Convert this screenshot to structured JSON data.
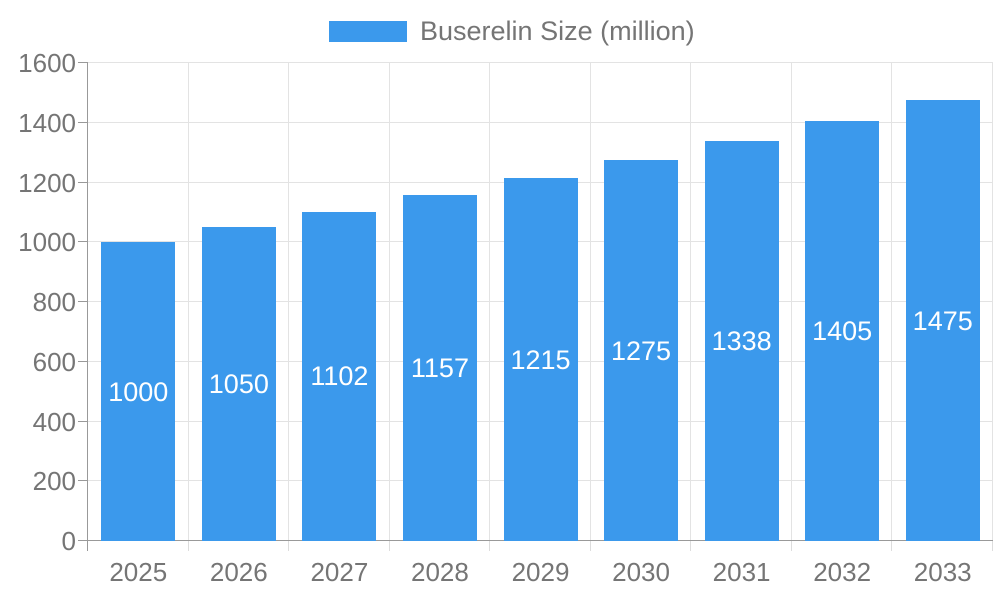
{
  "chart_data": {
    "type": "bar",
    "title": "Buserelin Size (million)",
    "categories": [
      "2025",
      "2026",
      "2027",
      "2028",
      "2029",
      "2030",
      "2031",
      "2032",
      "2033"
    ],
    "series": [
      {
        "name": "Buserelin Size (million)",
        "values": [
          1000,
          1050,
          1102,
          1157,
          1215,
          1275,
          1338,
          1405,
          1475
        ]
      }
    ],
    "xlabel": "",
    "ylabel": "",
    "ylim": [
      0,
      1600
    ],
    "ytick_step": 200,
    "ytick_labels": [
      "0",
      "200",
      "400",
      "600",
      "800",
      "1000",
      "1200",
      "1400",
      "1600"
    ],
    "grid": true,
    "legend_position": "top-center",
    "value_labels": "inside-center"
  },
  "colors": {
    "bar": "#3B99EC",
    "grid": "#E3E3E3",
    "axis": "#999999",
    "tick_major": "#999999",
    "tick_minor": "#DDDDDD",
    "axis_text": "#757575",
    "legend_text": "#757575",
    "value_text": "#FFFFFF",
    "background": "#FFFFFF"
  }
}
